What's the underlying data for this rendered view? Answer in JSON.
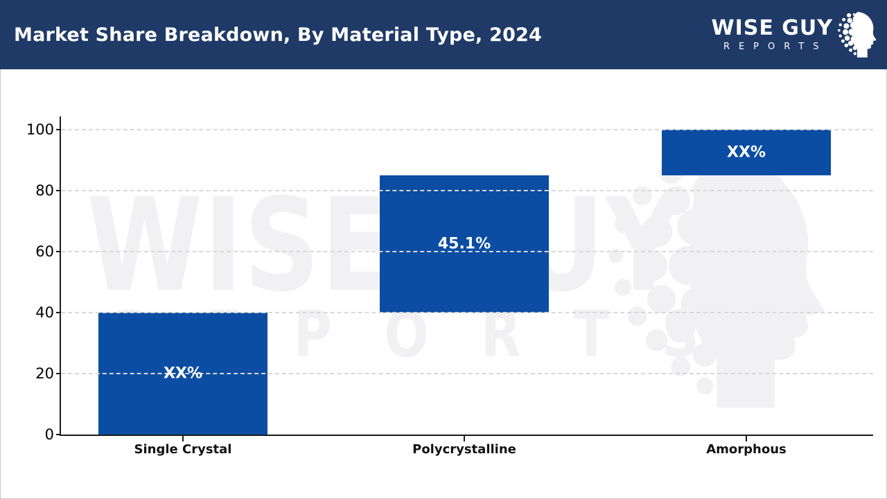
{
  "page": {
    "background": "#ffffff",
    "border_color": "#c9c9c9"
  },
  "header": {
    "title": "Market Share Breakdown, By Material Type, 2024",
    "background": "#1F3A67",
    "logo": {
      "wordmark": "WISE GUY",
      "subtext": "REPORTS"
    }
  },
  "watermark": {
    "wordmark": "WISE GUY",
    "subtext": "R E P O R T S"
  },
  "chart_data": {
    "type": "bar",
    "subtype": "waterfall",
    "title": "Market Share Breakdown, By Material Type, 2024",
    "categories": [
      "Single Crystal",
      "Polycrystalline",
      "Amorphous"
    ],
    "bars": [
      {
        "category": "Single Crystal",
        "start": 0,
        "end": 40,
        "label": "XX%"
      },
      {
        "category": "Polycrystalline",
        "start": 40,
        "end": 85.1,
        "label": "45.1%"
      },
      {
        "category": "Amorphous",
        "start": 85.1,
        "end": 100,
        "label": "XX%"
      }
    ],
    "xlabel": "",
    "ylabel": "",
    "ylim": [
      0,
      100
    ],
    "yticks": [
      0,
      20,
      40,
      60,
      80,
      100
    ],
    "grid": "horizontal-dashed",
    "grid_above_bars": true,
    "legend": "none",
    "bar_color": "#0B4DA2",
    "bar_label_color": "#ffffff",
    "grid_color": "#d8d8d8",
    "axis_color": "#1a1a1a"
  }
}
